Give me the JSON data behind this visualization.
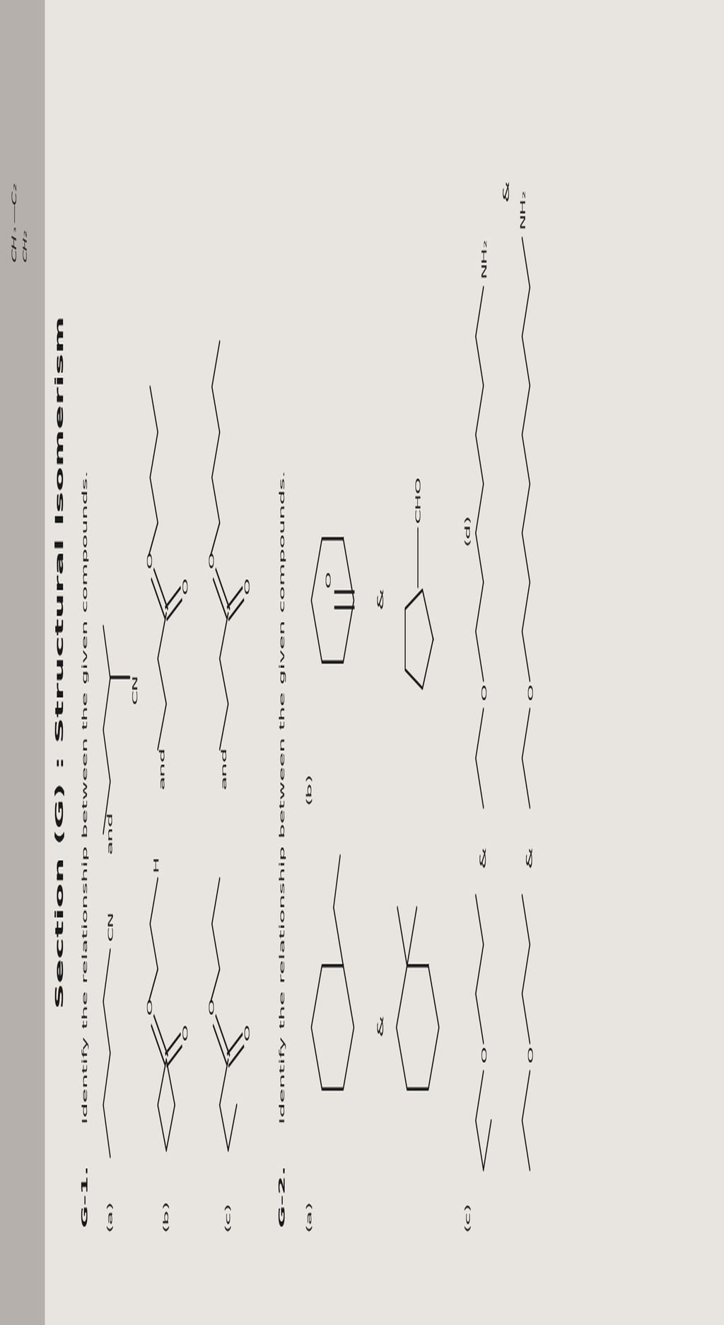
{
  "title": "Section (G) : Structural Isomerism",
  "g1_label": "G-1.",
  "g1_text": "Identify the relationship between the given compounds.",
  "g2_label": "G-2.",
  "g2_text": "Identify the relationship between the given compounds.",
  "bg_page": "#e8e4df",
  "bg_top": "#b5b0ab",
  "text_color": "#1a1a1a",
  "line_color": "#1a1a1a"
}
